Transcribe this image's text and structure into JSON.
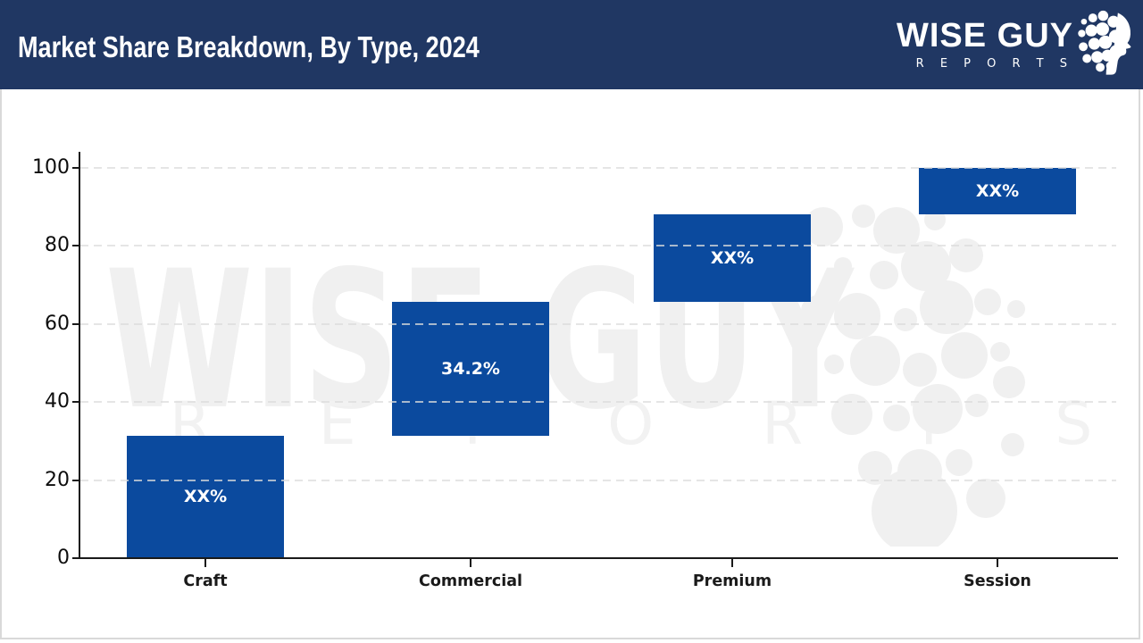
{
  "header": {
    "title": "Market Share Breakdown, By Type, 2024",
    "bg_color": "#203763",
    "logo": {
      "line1": "WISE GUY",
      "line2": "R E P O R T S"
    }
  },
  "watermark": {
    "line1": "WISE GUY",
    "line2": "R E P O R T S"
  },
  "chart_data": {
    "type": "bar",
    "subtype": "floating-waterfall",
    "title": "Market Share Breakdown, By Type, 2024",
    "categories": [
      "Craft",
      "Commercial",
      "Premium",
      "Session"
    ],
    "segments": [
      {
        "category": "Craft",
        "start": 0,
        "end": 31.4,
        "label": "XX%"
      },
      {
        "category": "Commercial",
        "start": 31.4,
        "end": 65.6,
        "label": "34.2%",
        "value": 34.2
      },
      {
        "category": "Premium",
        "start": 65.6,
        "end": 88.1,
        "label": "XX%"
      },
      {
        "category": "Session",
        "start": 88.1,
        "end": 100,
        "label": "XX%"
      }
    ],
    "ylim": [
      0,
      100
    ],
    "yticks": [
      0,
      20,
      40,
      60,
      80,
      100
    ],
    "grid": "horizontal-dashed",
    "grid_color": "#dcdcdc",
    "bar_color": "#0b4a9e",
    "bar_label_color": "#ffffff",
    "axis_color": "#1a1a1a"
  }
}
